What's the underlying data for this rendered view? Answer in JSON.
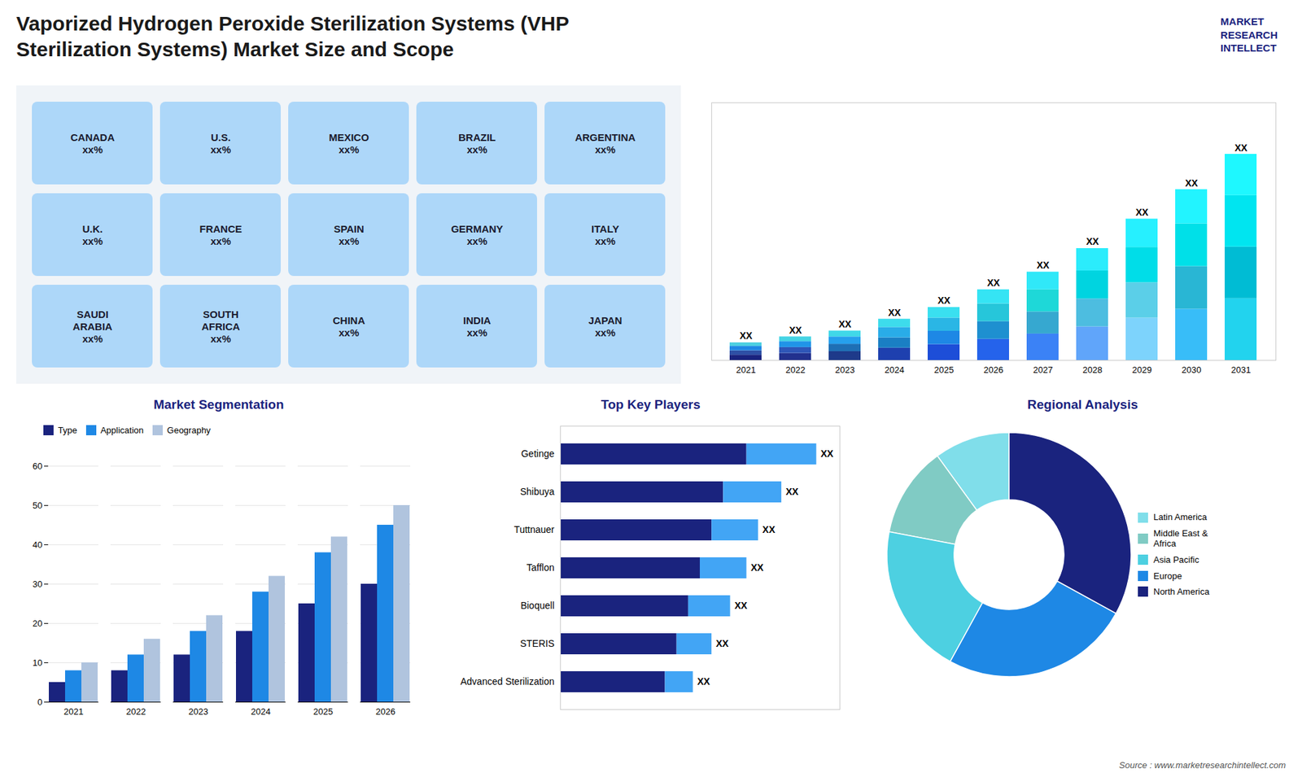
{
  "title": "Vaporized Hydrogen Peroxide Sterilization Systems (VHP\nSterilization Systems) Market Size and Scope",
  "annotations": [
    "MARKET\nRESEARCH\nINTELLECT",
    "Source : www.marketresearchintellect.com"
  ],
  "chart_data": [
    {
      "type": "map",
      "annotations": [
        "CANADA\nxx%",
        "U.S.\nxx%",
        "MEXICO\nxx%",
        "BRAZIL\nxx%",
        "ARGENTINA\nxx%",
        "U.K.\nxx%",
        "FRANCE\nxx%",
        "SPAIN\nxx%",
        "GERMANY\nxx%",
        "ITALY\nxx%",
        "SAUDI\nARABIA\nxx%",
        "SOUTH\nAFRICA\nxx%",
        "CHINA\nxx%",
        "INDIA\nxx%",
        "JAPAN\nxx%"
      ]
    },
    {
      "type": "bar",
      "stacked": true,
      "categories": [
        "2021",
        "2022",
        "2023",
        "2024",
        "2025",
        "2026",
        "2027",
        "2028",
        "2029",
        "2030",
        "2031"
      ],
      "series": [
        {
          "values": [
            0.9,
            1.2,
            1.5,
            2.1,
            2.7,
            3.6,
            4.5,
            5.7,
            7.2,
            8.7,
            10.5
          ],
          "colors": [
            "#1a237e",
            "#22318e",
            "#1e3a8a",
            "#1e40af",
            "#1d4ed8",
            "#2563eb",
            "#3b82f6",
            "#60a5fa",
            "#7dd3fc",
            "#38bdf8",
            "#22d3ee"
          ]
        },
        {
          "values": [
            0.75,
            1,
            1.25,
            1.75,
            2.25,
            3,
            3.75,
            4.75,
            6,
            7.25,
            8.75
          ],
          "colors": [
            "#2e4fa5",
            "#2e56b8",
            "#1e6fb5",
            "#1a7fc4",
            "#1e88e5",
            "#1e90d0",
            "#36a8d0",
            "#4dbde0",
            "#5bcfe8",
            "#29b6d4",
            "#00bcd4"
          ]
        },
        {
          "values": [
            0.75,
            1,
            1.25,
            1.75,
            2.25,
            3,
            3.75,
            4.75,
            6,
            7.25,
            8.75
          ],
          "colors": [
            "#1e88e5",
            "#2094e8",
            "#26a0ed",
            "#29ace8",
            "#2ab6e5",
            "#26c6da",
            "#1ed8d8",
            "#00d4e0",
            "#00dde8",
            "#00e0e8",
            "#00e5f0"
          ]
        },
        {
          "values": [
            0.6,
            0.8,
            1,
            1.4,
            1.8,
            2.4,
            3,
            3.8,
            4.8,
            5.8,
            7
          ],
          "colors": [
            "#4dd0e1",
            "#45d4e4",
            "#40d8e8",
            "#3ddcec",
            "#3ae0f0",
            "#35e4f4",
            "#30e8f8",
            "#2becfc",
            "#26f0ff",
            "#22f4ff",
            "#1ef8ff"
          ],
          "value_labels": [
            "XX",
            "XX",
            "XX",
            "XX",
            "XX",
            "XX",
            "XX",
            "XX",
            "XX",
            "XX",
            "XX"
          ]
        }
      ],
      "ylim": [
        0,
        43.75
      ],
      "tick_labels": "x",
      "data_labels": true,
      "grid": false
    },
    {
      "type": "bar",
      "title": "Market Segmentation",
      "stacked": false,
      "categories": [
        "2021",
        "2022",
        "2023",
        "2024",
        "2025",
        "2026"
      ],
      "series": [
        {
          "name": "Type",
          "color": "#1a237e",
          "values": [
            5,
            8,
            12,
            18,
            25,
            30
          ]
        },
        {
          "name": "Application",
          "color": "#1e88e5",
          "values": [
            8,
            12,
            18,
            28,
            38,
            45
          ]
        },
        {
          "name": "Geography",
          "color": "#b0c4de",
          "values": [
            10,
            16,
            22,
            32,
            42,
            50
          ]
        }
      ],
      "ylim": [
        0,
        60
      ],
      "yticks": [
        0,
        10,
        20,
        30,
        40,
        50,
        60
      ],
      "grid": true,
      "legend": "upper left"
    },
    {
      "type": "bar",
      "title": "Top Key Players",
      "orientation": "horizontal",
      "stacked": true,
      "categories": [
        "Getinge",
        "Shibuya",
        "Tuttnauer",
        "Tafflon",
        "Bioquell",
        "STERIS",
        "Advanced Sterilization"
      ],
      "series": [
        {
          "color": "#1a237e",
          "values": [
            8,
            7,
            6.5,
            6,
            5.5,
            5,
            4.5
          ]
        },
        {
          "color": "#42a5f5",
          "values": [
            3,
            2.5,
            2,
            2,
            1.8,
            1.5,
            1.2
          ],
          "value_labels": [
            "XX",
            "XX",
            "XX",
            "XX",
            "XX",
            "XX",
            "XX"
          ]
        }
      ],
      "xlim": [
        0,
        12
      ],
      "tick_labels": "y",
      "data_labels": true,
      "grid": false
    },
    {
      "type": "donut",
      "title": "Regional Analysis",
      "categories": [
        "Latin America",
        "Middle East &\nAfrica",
        "Asia Pacific",
        "Europe",
        "North America"
      ],
      "values": [
        10,
        12,
        20,
        25,
        33
      ],
      "colors": [
        "#80deea",
        "#80cbc4",
        "#4dd0e1",
        "#1e88e5",
        "#1a237e"
      ],
      "legend": "right"
    }
  ]
}
